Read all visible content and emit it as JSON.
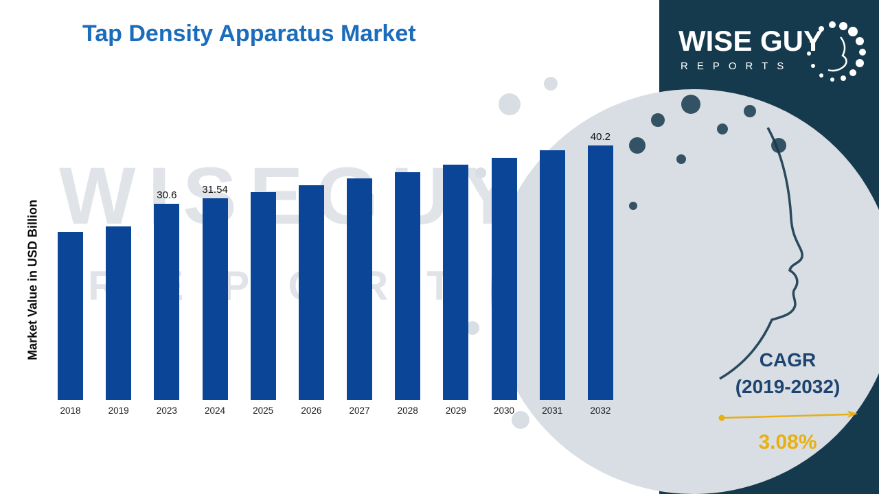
{
  "title": "Tap Density Apparatus Market",
  "chart_data": {
    "type": "bar",
    "title": "Tap Density Apparatus Market",
    "xlabel": "",
    "ylabel": "Market Value in USD Billion",
    "categories": [
      "2018",
      "2019",
      "2023",
      "2024",
      "2025",
      "2026",
      "2027",
      "2028",
      "2029",
      "2030",
      "2031",
      "2032"
    ],
    "values": [
      26.3,
      27.1,
      30.6,
      31.54,
      32.5,
      33.5,
      34.6,
      35.6,
      36.7,
      37.8,
      39.0,
      40.2
    ],
    "bar_labels": [
      "",
      "",
      "30.6",
      "31.54",
      "",
      "",
      "",
      "",
      "",
      "",
      "",
      "40.2"
    ],
    "ylim": [
      0,
      42
    ],
    "grid": false,
    "legend": "none",
    "bar_color": "#0a4598"
  },
  "branding": {
    "logo_line1": "WISE GUY",
    "logo_line2": "REPORTS",
    "watermark_line1": "WISEGUY",
    "watermark_line2": "REPORTS"
  },
  "cagr": {
    "label": "CAGR",
    "range": "(2019-2032)",
    "value": "3.08%"
  },
  "colors": {
    "title_blue": "#1b6cbb",
    "bar_blue": "#0a4598",
    "panel_teal": "#163a4d",
    "watermark_gray": "#e0e4e9",
    "face_gray": "#d8dee3",
    "gold": "#e7af10",
    "cagr_navy": "#1d4370"
  }
}
